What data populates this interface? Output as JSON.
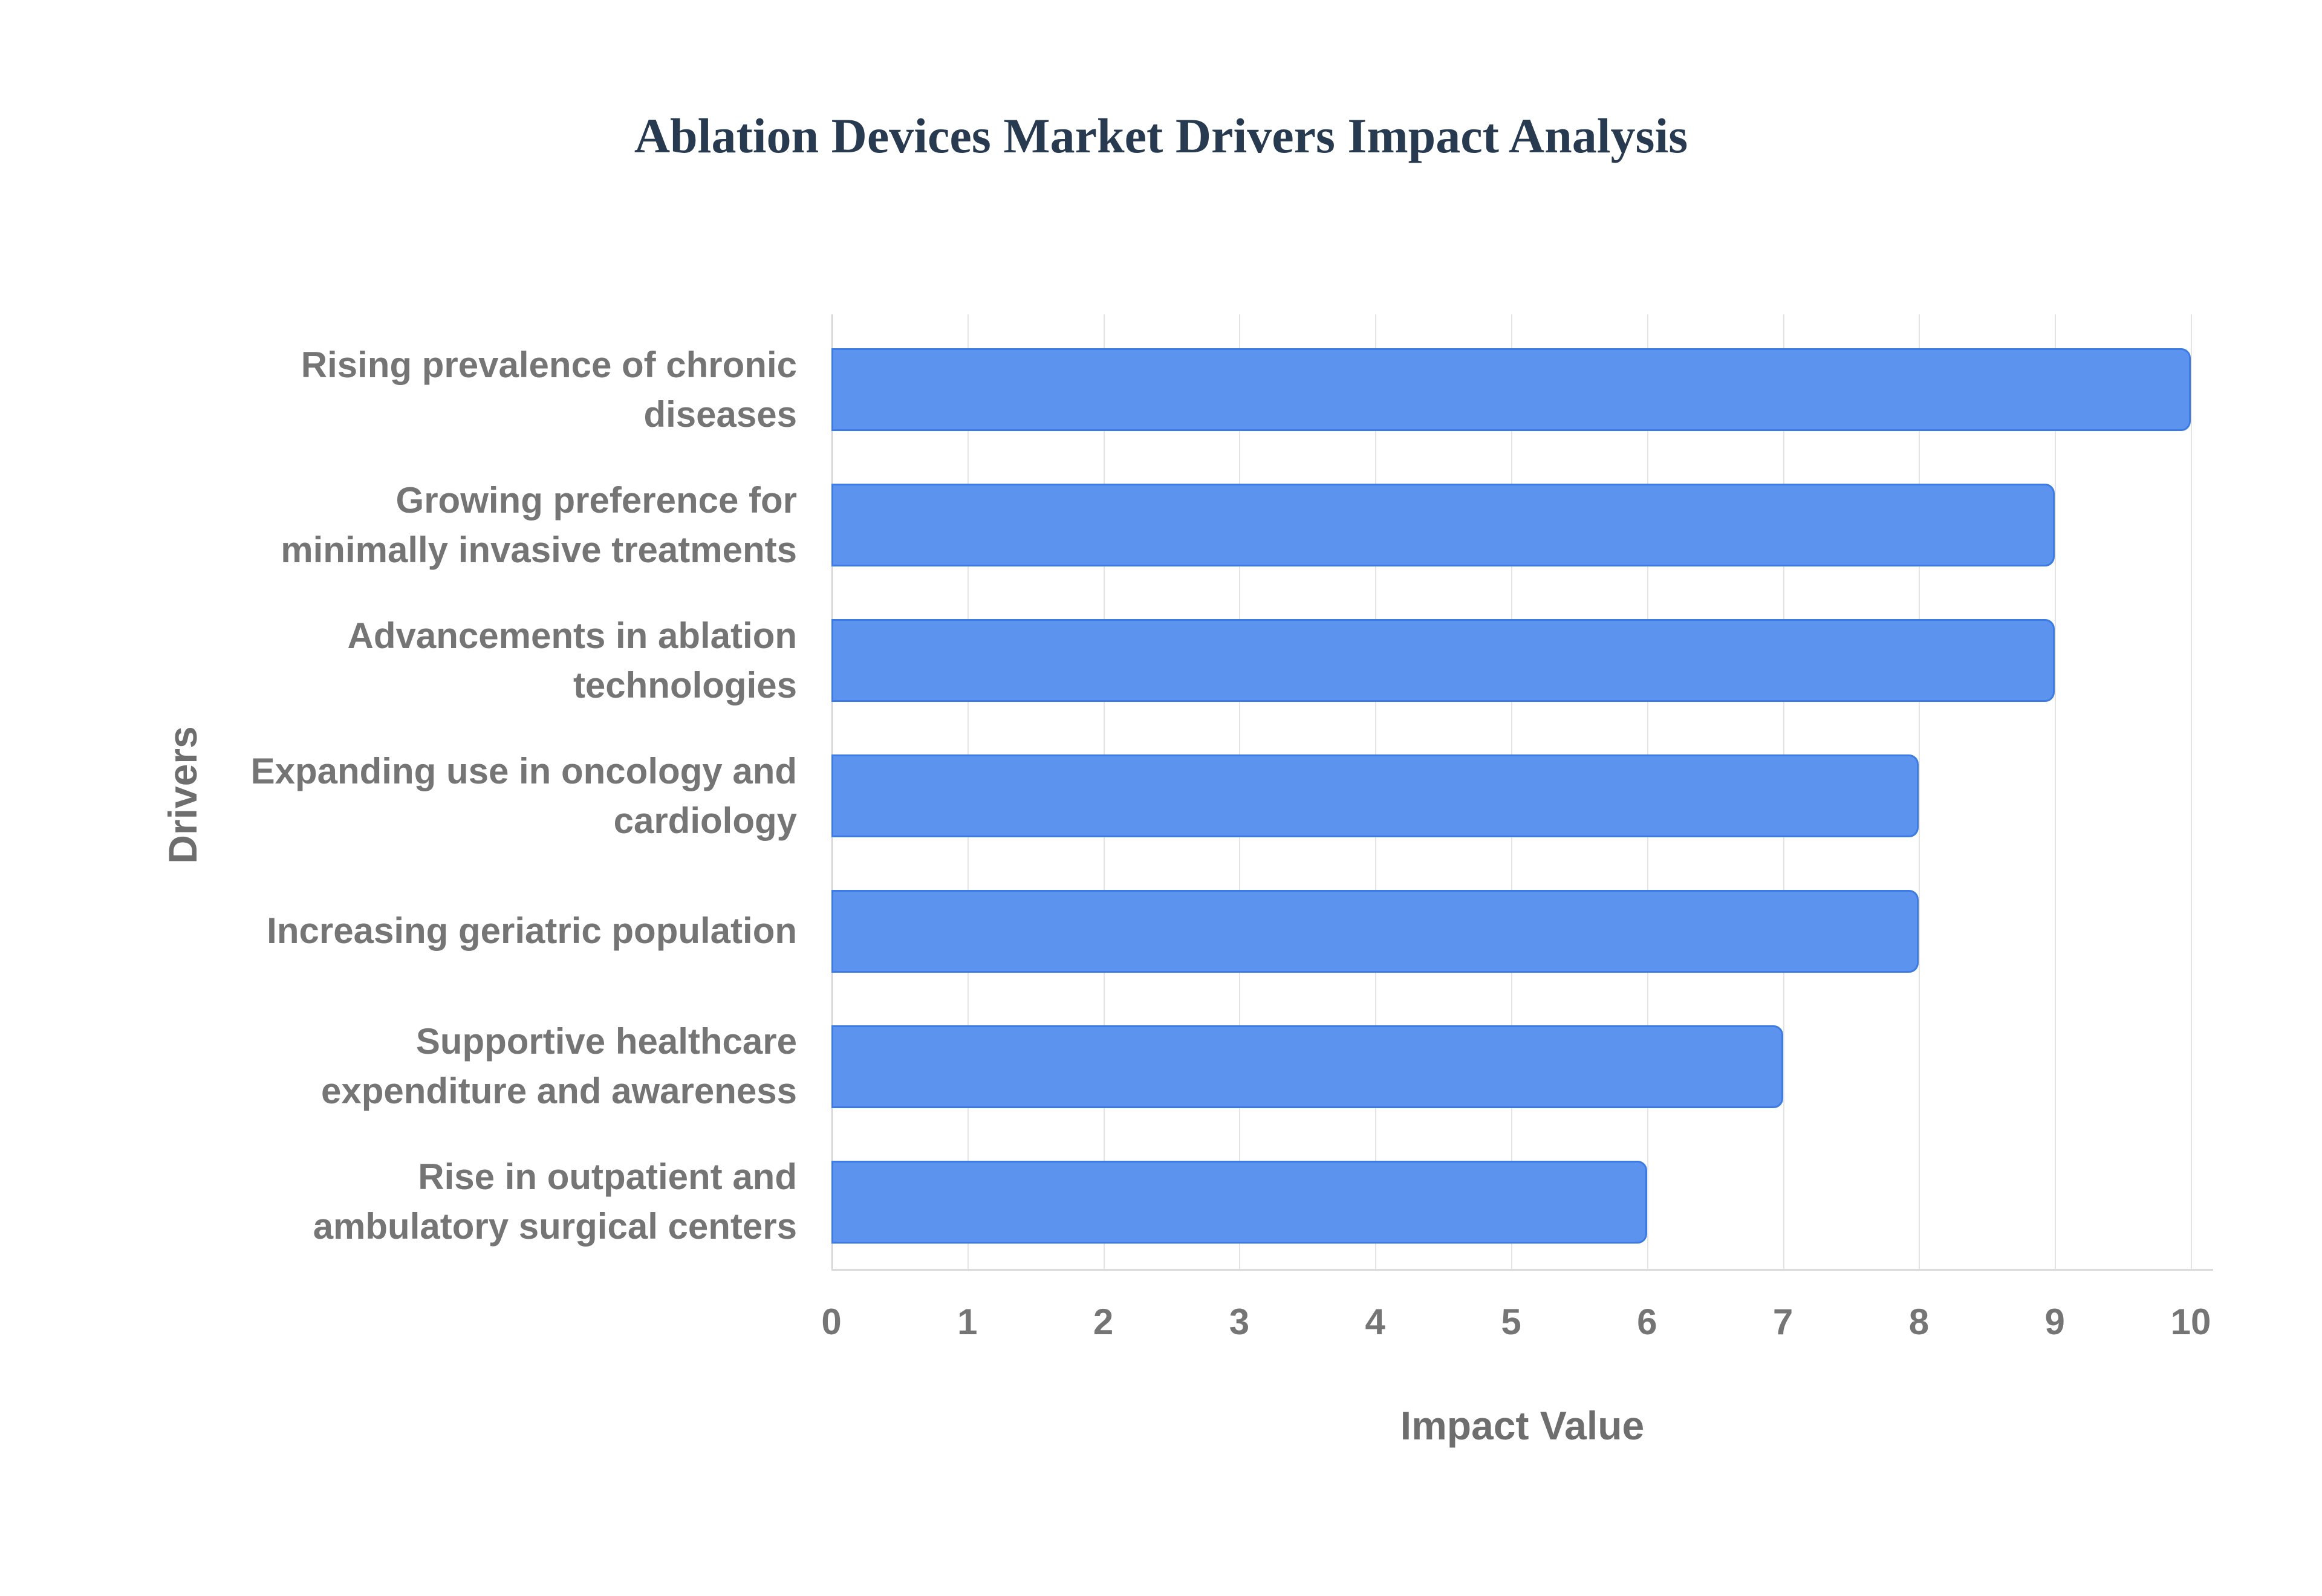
{
  "title": {
    "text": "Ablation Devices Market Drivers Impact Analysis",
    "color": "#283a50"
  },
  "chart_data": {
    "type": "bar",
    "orientation": "horizontal",
    "title": "Ablation Devices Market Drivers Impact Analysis",
    "xlabel": "Impact Value",
    "ylabel": "Drivers",
    "categories": [
      "Rising prevalence of chronic diseases",
      "Growing preference for minimally invasive treatments",
      "Advancements in ablation technologies",
      "Expanding use in oncology and cardiology",
      "Increasing geriatric population",
      "Supportive healthcare expenditure and awareness",
      "Rise in outpatient and ambulatory surgical centers"
    ],
    "values": [
      10,
      9,
      9,
      8,
      8,
      7,
      6
    ],
    "xlim": [
      0,
      10
    ],
    "xtick_labels": [
      "0",
      "1",
      "2",
      "3",
      "4",
      "5",
      "6",
      "7",
      "8",
      "9",
      "10"
    ],
    "grid": "vertical-gridlines-on",
    "legend": "none",
    "colors": {
      "bar_fill": "#5c93ee",
      "bar_border": "#3d7be4",
      "gridline": "#e4e4e4",
      "zero_line": "#cfcfcf",
      "axis_line": "#dbdbdb",
      "tick_label": "#757575",
      "category_label": "#757575",
      "axis_title": "#6e6e6e",
      "title": "#283a50"
    }
  }
}
